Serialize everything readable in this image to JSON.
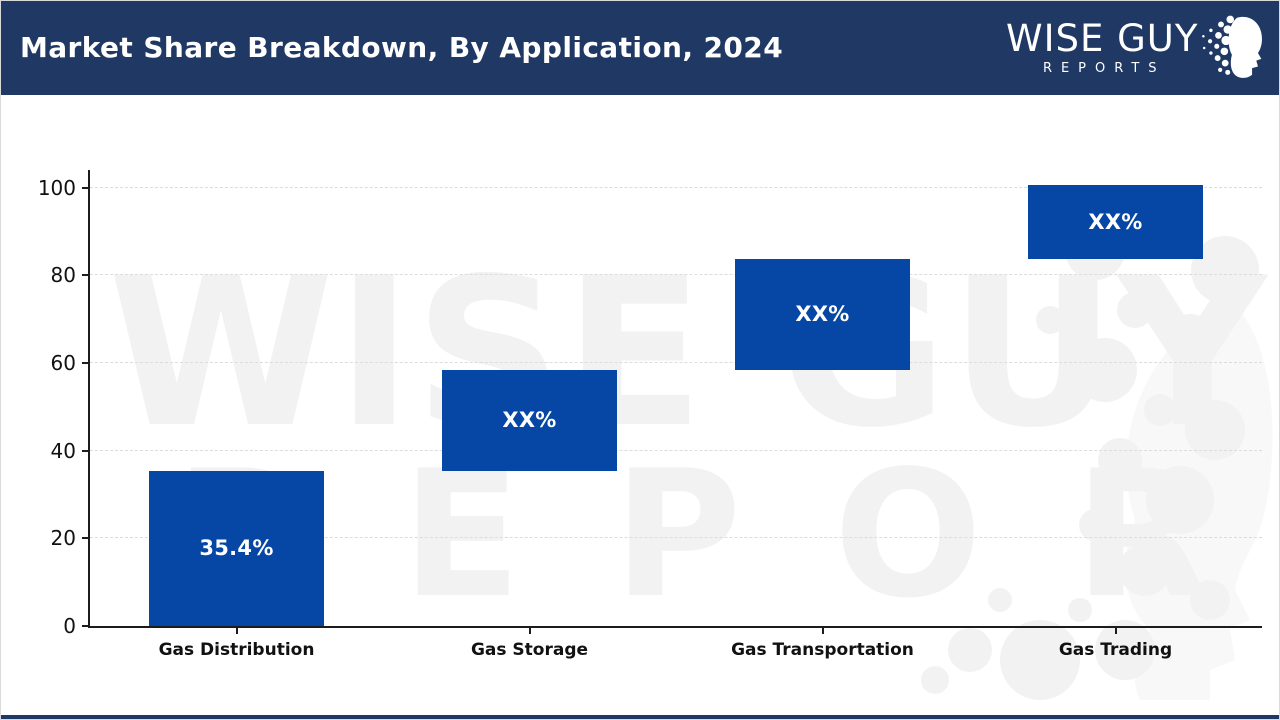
{
  "header": {
    "title": "Market Share Breakdown, By Application, 2024",
    "logo": {
      "line1": "WISE GUY",
      "line2": "REPORTS"
    }
  },
  "watermark": {
    "line1": "WISE GUY",
    "line2": "REPORTS"
  },
  "colors": {
    "header_bg": "#1f3864",
    "footer_bg": "#1f3864",
    "bar": "#0646a5",
    "bar_label": "#ffffff",
    "grid": "#dcdcdc",
    "watermark": "#f2f2f2"
  },
  "chart_data": {
    "type": "bar",
    "variant": "waterfall",
    "title": "Market Share Breakdown, By Application, 2024",
    "xlabel": "",
    "ylabel": "",
    "categories": [
      "Gas Distribution",
      "Gas Storage",
      "Gas Transportation",
      "Gas Trading"
    ],
    "segments": [
      {
        "category": "Gas Distribution",
        "start": 0,
        "end": 35.4,
        "label": "35.4%"
      },
      {
        "category": "Gas Storage",
        "start": 35.4,
        "end": 58.4,
        "label": "XX%"
      },
      {
        "category": "Gas Transportation",
        "start": 58.4,
        "end": 83.8,
        "label": "XX%"
      },
      {
        "category": "Gas Trading",
        "start": 83.8,
        "end": 100.5,
        "label": "XX%"
      }
    ],
    "yticks": [
      0,
      20,
      40,
      60,
      80,
      100
    ],
    "ylim": [
      0,
      104
    ],
    "grid": "horizontal-dashed",
    "legend": "none",
    "bar_width_fraction": 0.15
  }
}
